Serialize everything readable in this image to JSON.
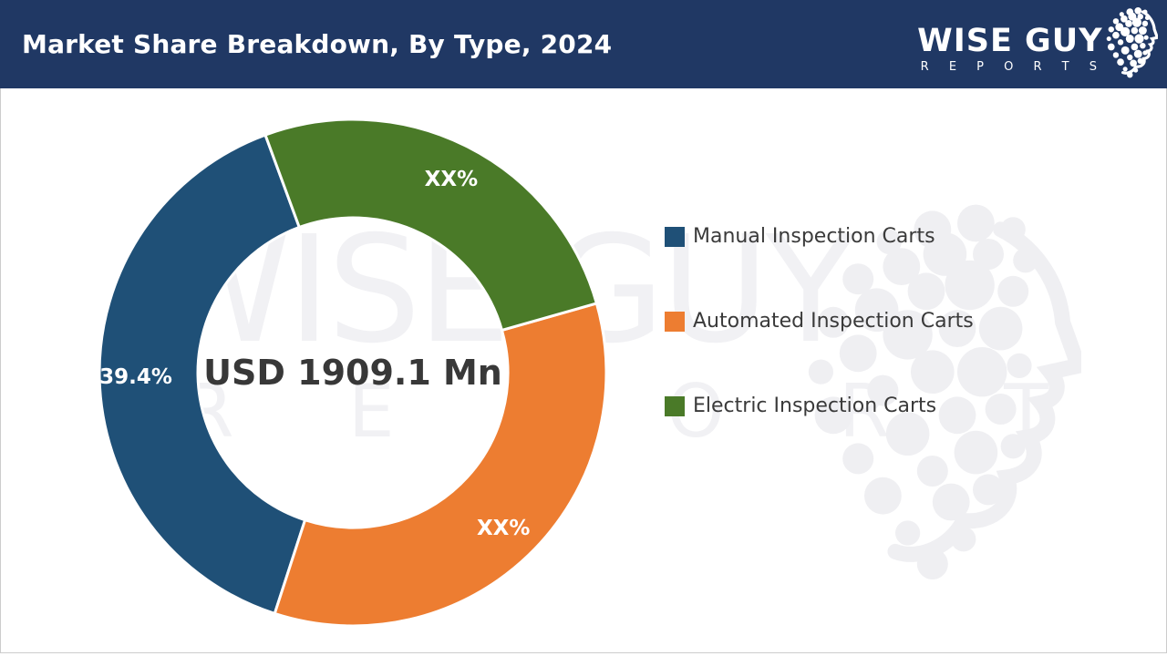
{
  "header": {
    "title": "Market Share Breakdown, By Type, 2024",
    "logo": {
      "name": "WISE GUY",
      "tagline": "R E P O R T S"
    }
  },
  "watermark": {
    "line1": "WISE GUY",
    "line2": "R E P O R T S"
  },
  "chart_data": {
    "type": "pie",
    "subtype": "donut",
    "title": "Market Share Breakdown, By Type, 2024",
    "center_label": "USD 1909.1 Mn",
    "legend_position": "right",
    "start_angle_deg": 110.2,
    "direction": "counterclockwise",
    "outer_radius_px": 278,
    "inner_radius_px": 170,
    "label_radius_px": 238,
    "slices": [
      {
        "name": "Manual Inspection Carts",
        "display_pct": "39.4%",
        "est_pct_of_total": 39.4,
        "color": "#1F5077"
      },
      {
        "name": "Automated Inspection Carts",
        "display_pct": "XX%",
        "est_pct_of_total": 34.4,
        "color": "#ED7D31"
      },
      {
        "name": "Electric Inspection Carts",
        "display_pct": "XX%",
        "est_pct_of_total": 26.2,
        "color": "#4A7A28"
      }
    ]
  },
  "colors": {
    "header_bg": "#203864",
    "body_bg": "#FFFFFF",
    "legend_text": "#3A3A3A",
    "center_text": "#383838",
    "pct_label_text": "#FFFFFF",
    "watermark": "#F1F1F4",
    "border": "#CCCCCC"
  }
}
